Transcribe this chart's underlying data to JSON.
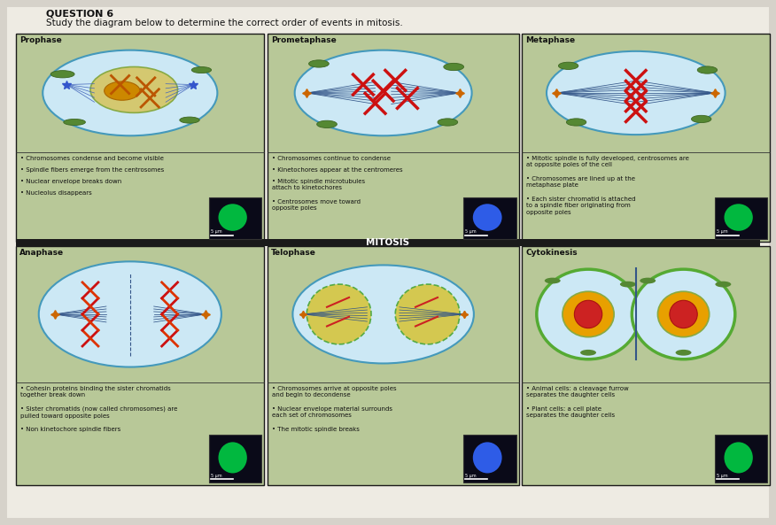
{
  "title": "QUESTION 6",
  "subtitle": "Study the diagram below to determine the correct order of events in mitosis.",
  "bg_color": "#d6d2ca",
  "page_bg": "#eeebe3",
  "panel_bg": "#b8c898",
  "mitosis_label": "MITOSIS",
  "stages": [
    {
      "name": "Prophase",
      "row": 0,
      "col": 0,
      "bullet_points": [
        "Chromosomes condense and become visible",
        "Spindle fibers emerge from the centrosomes",
        "Nuclear envelope breaks down",
        "Nucleolus disappears"
      ]
    },
    {
      "name": "Prometaphase",
      "row": 0,
      "col": 1,
      "bullet_points": [
        "Chromosomes continue to condense",
        "Kinetochores appear at the centromeres",
        "Mitotic spindle microtubules\nattach to kinetochores",
        "Centrosomes move toward\nopposite poles"
      ]
    },
    {
      "name": "Metaphase",
      "row": 0,
      "col": 2,
      "bullet_points": [
        "Mitotic spindle is fully developed, centrosomes are\nat opposite poles of the cell",
        "Chromosomes are lined up at the\nmetaphase plate",
        "Each sister chromatid is attached\nto a spindle fiber originating from\nopposite poles"
      ]
    },
    {
      "name": "Anaphase",
      "row": 1,
      "col": 0,
      "bullet_points": [
        "Cohesin proteins binding the sister chromatids\ntogether break down",
        "Sister chromatids (now called chromosomes) are\npulled toward opposite poles",
        "Non kinetochore spindle fibers"
      ]
    },
    {
      "name": "Telophase",
      "row": 1,
      "col": 1,
      "bullet_points": [
        "Chromosomes arrive at opposite poles\nand begin to decondense",
        "Nuclear envelope material surrounds\neach set of chromosomes",
        "The mitotic spindle breaks"
      ]
    },
    {
      "name": "Cytokinesis",
      "row": 1,
      "col": 2,
      "bullet_points": [
        "Animal cells: a cleavage furrow\nseparates the daughter cells",
        "Plant cells: a cell plate\nseparates the daughter cells"
      ]
    }
  ]
}
